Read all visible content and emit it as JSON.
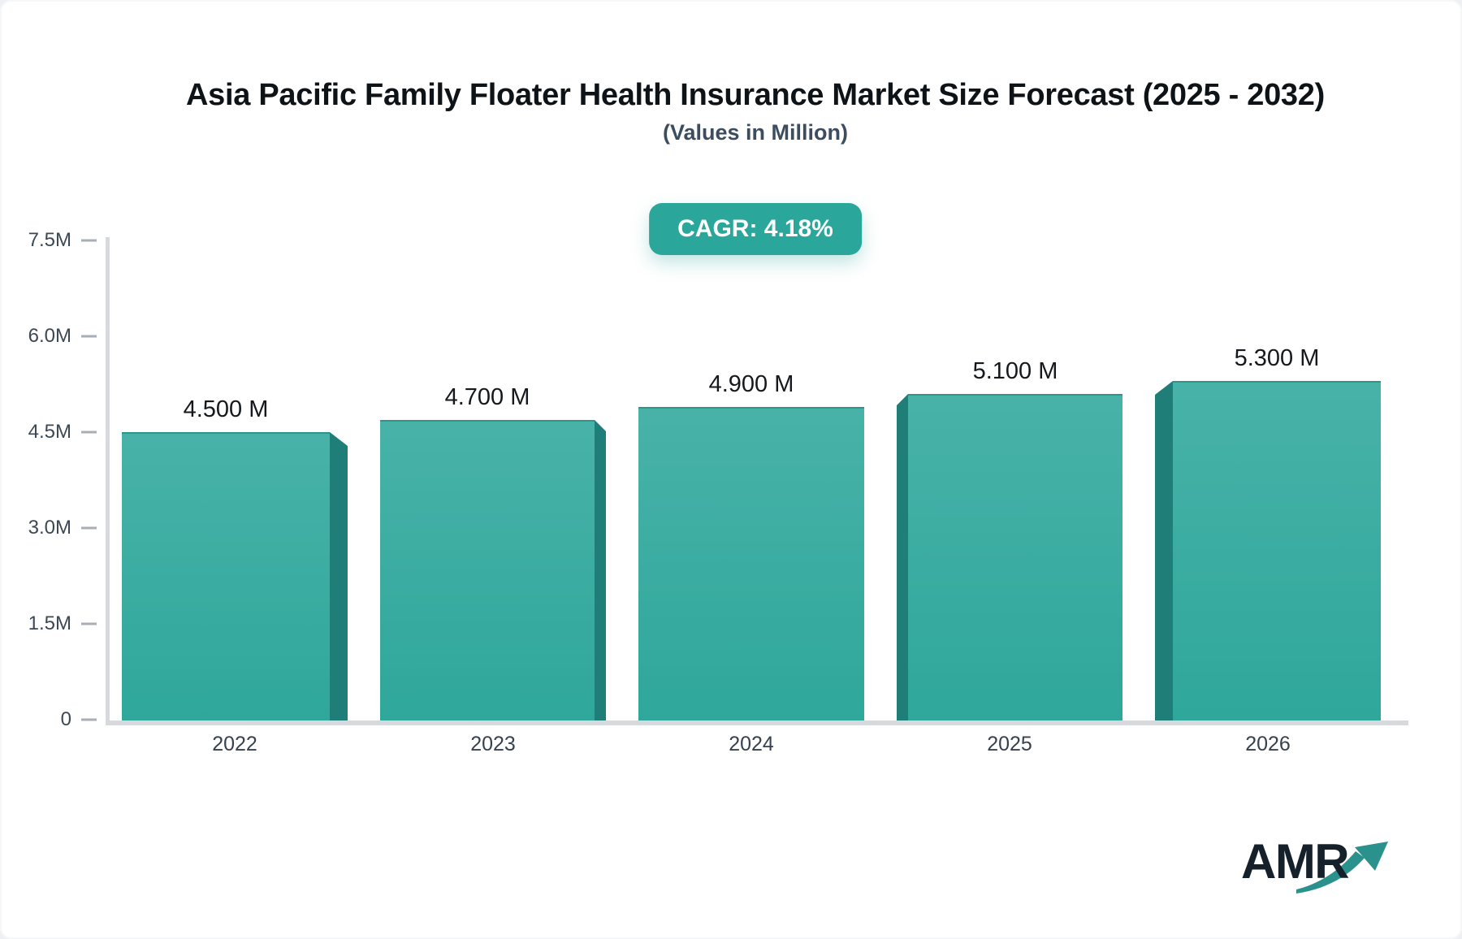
{
  "header": {
    "title": "Asia Pacific Family Floater Health Insurance Market Size Forecast (2025 - 2032)",
    "subtitle": "(Values in Million)",
    "cagr_badge": "CAGR: 4.18%"
  },
  "chart_data": {
    "type": "bar",
    "title": "Asia Pacific Family Floater Health Insurance Market Size Forecast (2025 - 2032)",
    "subtitle": "(Values in Million)",
    "unit": "Million",
    "categories": [
      "2022",
      "2023",
      "2024",
      "2025",
      "2026"
    ],
    "values": [
      4.5,
      4.7,
      4.9,
      5.1,
      5.3
    ],
    "value_labels": [
      "4.500 M",
      "4.700 M",
      "4.900 M",
      "5.100 M",
      "5.300 M"
    ],
    "cagr": "4.18%",
    "xlabel": "",
    "ylabel": "",
    "ylim": [
      0,
      7.5
    ],
    "yticks": [
      "7.5M",
      "6.0M",
      "4.5M",
      "3.0M",
      "1.5M",
      "0"
    ],
    "grid": false,
    "legend": "none",
    "style_3d": true,
    "colors": {
      "accent": "#2aa69a",
      "bar_face_top": "#48b2a8",
      "bar_face_bottom": "#2fa79b",
      "bar_side": "#1f7e77",
      "axis": "#d6dade",
      "label_text": "#15191d"
    }
  },
  "logo": {
    "text": "AMR",
    "icon": "trend-up-arrow"
  }
}
